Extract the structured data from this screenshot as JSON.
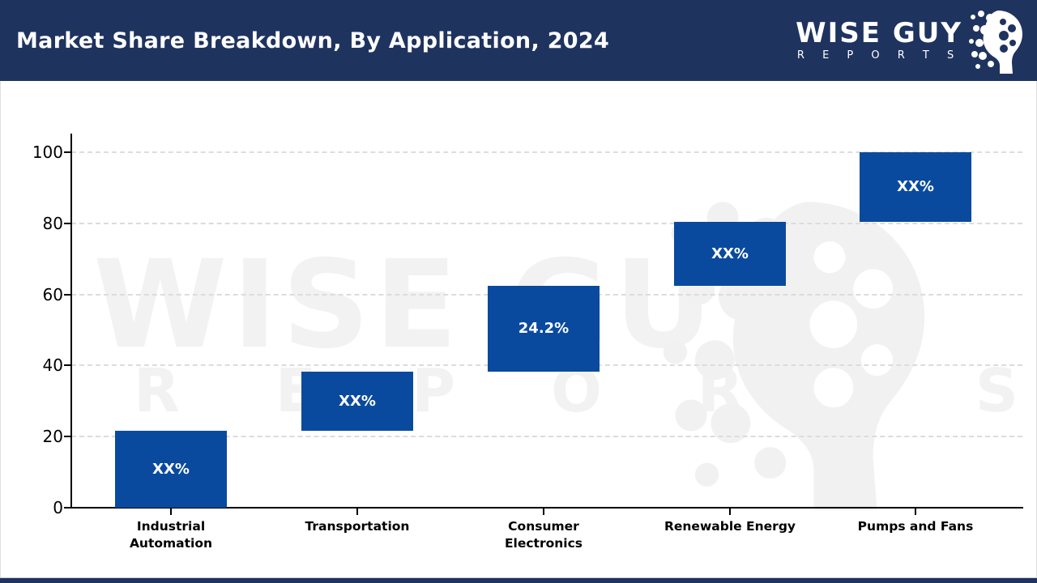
{
  "header": {
    "title": "Market Share Breakdown, By Application, 2024",
    "logo": {
      "wordmark": "WISE GUY",
      "subtext": "R E P O R T S"
    },
    "bg_color": "#1f335f"
  },
  "watermark": {
    "line1": "WISE GUY",
    "line2": "R E P O R T S"
  },
  "chart_data": {
    "type": "bar",
    "subtype": "waterfall-floating-bars",
    "title": "Market Share Breakdown, By Application, 2024",
    "xlabel": "",
    "ylabel": "",
    "categories": [
      "Industrial\nAutomation",
      "Transportation",
      "Consumer\nElectronics",
      "Renewable Energy",
      "Pumps and Fans"
    ],
    "segments": [
      {
        "category": "Industrial Automation",
        "start": 0,
        "end": 21.7,
        "share": 21.7,
        "label": "XX%"
      },
      {
        "category": "Transportation",
        "start": 21.7,
        "end": 38.3,
        "share": 16.6,
        "label": "XX%"
      },
      {
        "category": "Consumer Electronics",
        "start": 38.3,
        "end": 62.5,
        "share": 24.2,
        "label": "24.2%"
      },
      {
        "category": "Renewable Energy",
        "start": 62.5,
        "end": 80.5,
        "share": 18.0,
        "label": "XX%"
      },
      {
        "category": "Pumps and Fans",
        "start": 80.5,
        "end": 100.0,
        "share": 19.5,
        "label": "XX%"
      }
    ],
    "y_ticks": [
      0,
      20,
      40,
      60,
      80,
      100
    ],
    "ylim": [
      0,
      105
    ],
    "bar_color": "#0a4a9e",
    "grid": "horizontal-dashed",
    "legend_position": "none"
  }
}
